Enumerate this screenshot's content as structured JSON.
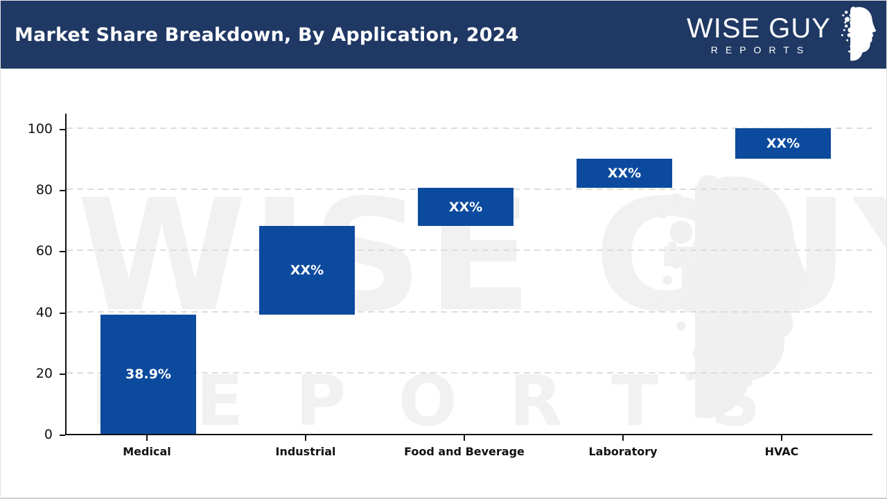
{
  "header": {
    "title": "Market Share Breakdown, By Application, 2024",
    "logo": {
      "wordmark": "WISE GUY",
      "subtitle": "REPORTS"
    }
  },
  "watermark": {
    "line1": "WISE GUY",
    "line2": "REPORTS"
  },
  "colors": {
    "header_bg": "#1f3864",
    "bar": "#0c4a9e",
    "bar_label": "#ffffff",
    "gridline": "#dcdcdc",
    "axis": "#111111",
    "watermark": "#f1f1f1"
  },
  "chart_data": {
    "type": "bar",
    "subtype": "waterfall",
    "title": "Market Share Breakdown, By Application, 2024",
    "categories": [
      "Medical",
      "Industrial",
      "Food and Beverage",
      "Laboratory",
      "HVAC"
    ],
    "segments": [
      {
        "category": "Medical",
        "start": 0,
        "end": 38.9,
        "label": "38.9%"
      },
      {
        "category": "Industrial",
        "start": 38.9,
        "end": 68.0,
        "label": "XX%"
      },
      {
        "category": "Food and Beverage",
        "start": 68.0,
        "end": 80.4,
        "label": "XX%"
      },
      {
        "category": "Laboratory",
        "start": 80.4,
        "end": 90.1,
        "label": "XX%"
      },
      {
        "category": "HVAC",
        "start": 90.1,
        "end": 100,
        "label": "XX%"
      }
    ],
    "y_ticks": [
      0,
      20,
      40,
      60,
      80,
      100
    ],
    "ylim": [
      0,
      105
    ],
    "xlabel": "",
    "ylabel": "",
    "grid": "horizontal-dashed",
    "legend": "none"
  }
}
